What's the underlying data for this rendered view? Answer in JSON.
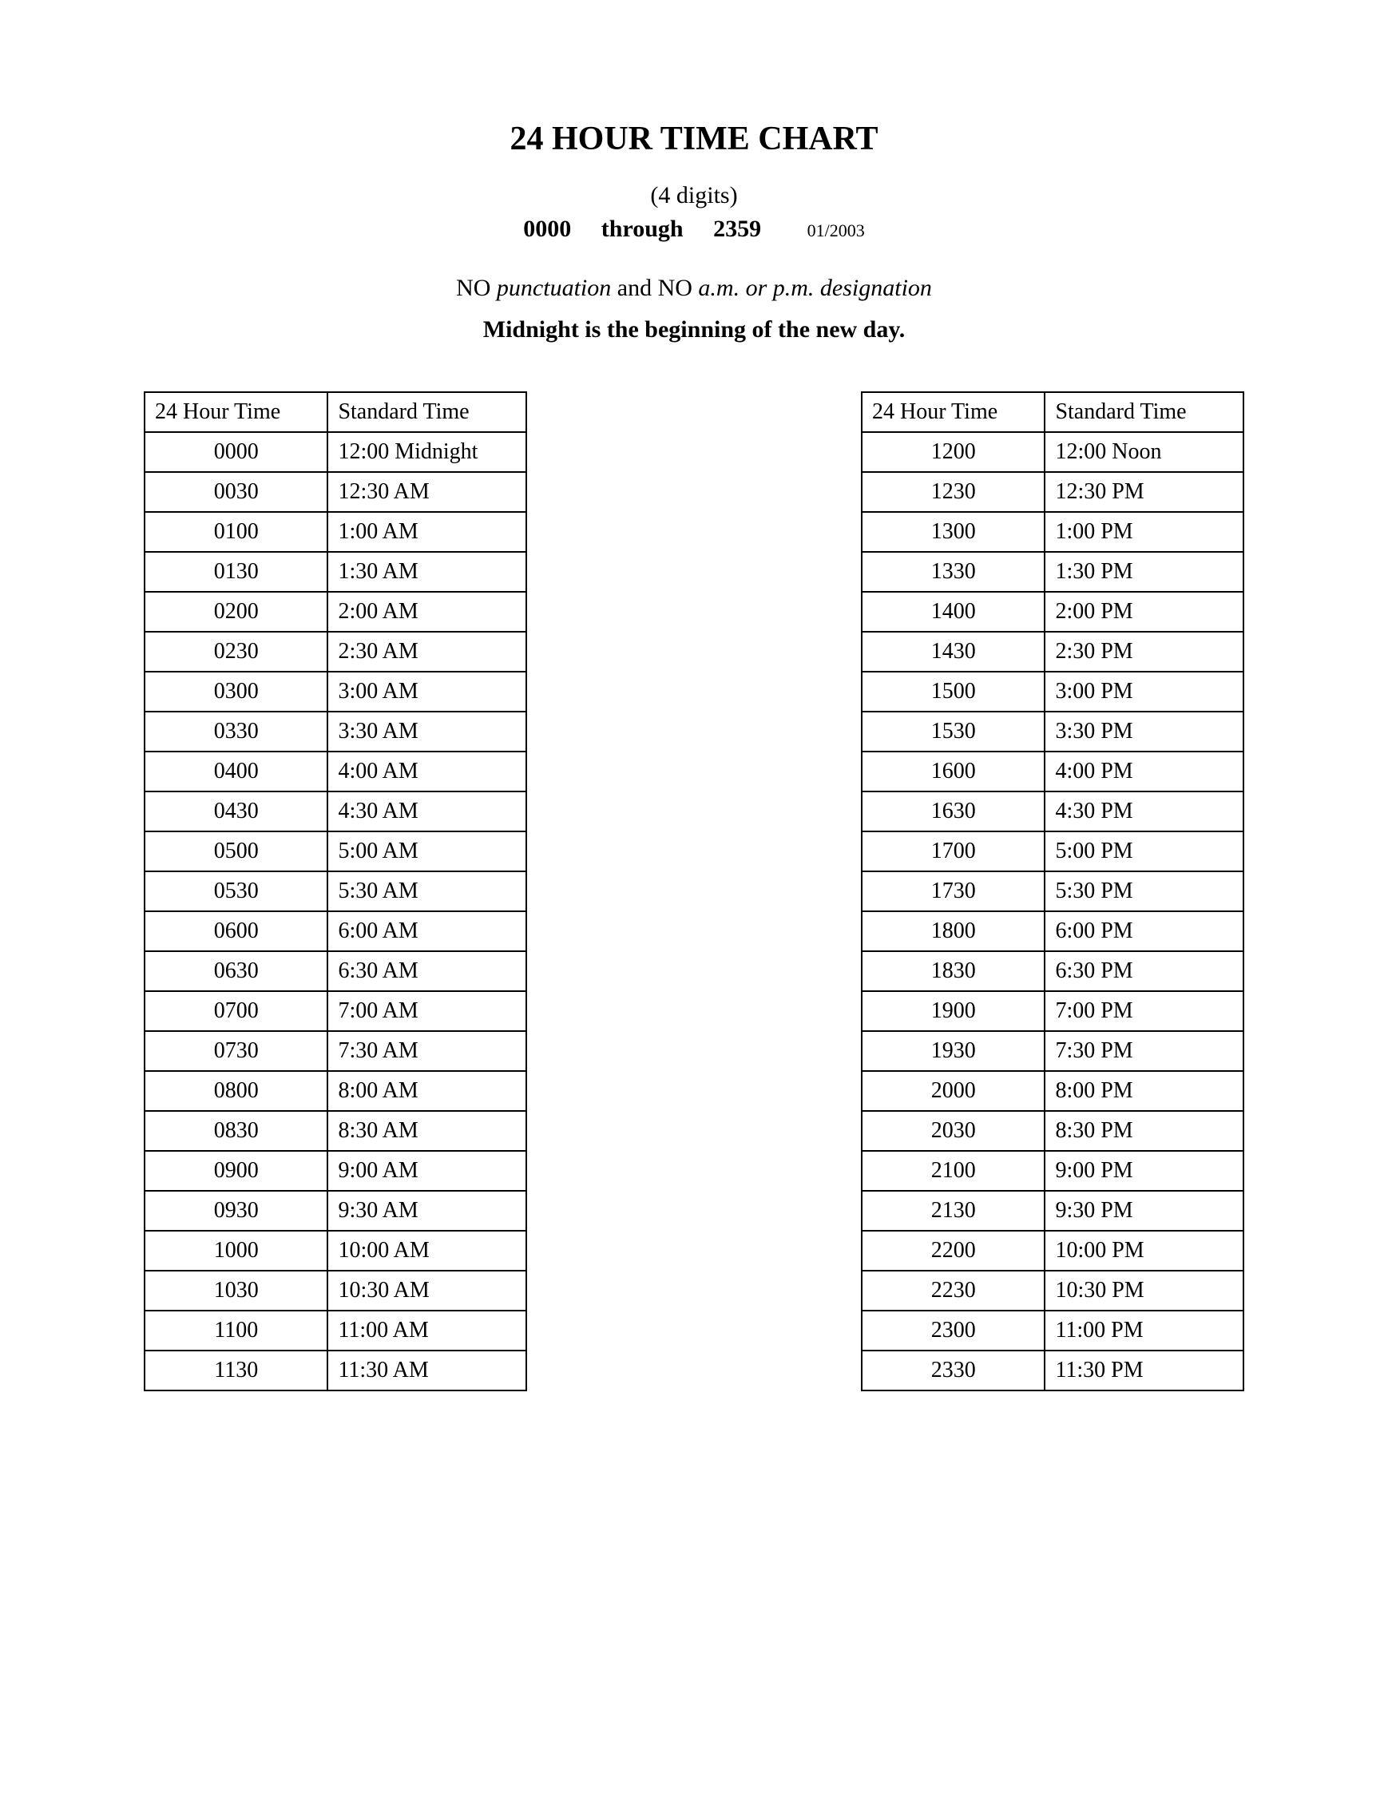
{
  "title": "24 HOUR TIME CHART",
  "subtitle": "(4 digits)",
  "range": {
    "from": "0000",
    "word": "through",
    "to": "2359",
    "date": "01/2003"
  },
  "rule1": {
    "p1": "NO ",
    "i1": "punctuation",
    "p2": " and NO ",
    "i2": "a.m. or p.m. designation"
  },
  "rule2": "Midnight is the beginning of the new day.",
  "headers": {
    "col24": "24 Hour Time",
    "colStd": "Standard Time"
  },
  "leftRows": [
    {
      "h24": "0000",
      "std": "12:00 Midnight"
    },
    {
      "h24": "0030",
      "std": "12:30 AM"
    },
    {
      "h24": "0100",
      "std": "1:00 AM"
    },
    {
      "h24": "0130",
      "std": "1:30 AM"
    },
    {
      "h24": "0200",
      "std": "2:00 AM"
    },
    {
      "h24": "0230",
      "std": "2:30 AM"
    },
    {
      "h24": "0300",
      "std": "3:00 AM"
    },
    {
      "h24": "0330",
      "std": "3:30  AM"
    },
    {
      "h24": "0400",
      "std": "4:00 AM"
    },
    {
      "h24": "0430",
      "std": "4:30 AM"
    },
    {
      "h24": "0500",
      "std": "5:00 AM"
    },
    {
      "h24": "0530",
      "std": "5:30 AM"
    },
    {
      "h24": "0600",
      "std": "6:00 AM"
    },
    {
      "h24": "0630",
      "std": "6:30 AM"
    },
    {
      "h24": "0700",
      "std": "7:00 AM"
    },
    {
      "h24": "0730",
      "std": "7:30 AM"
    },
    {
      "h24": "0800",
      "std": "8:00 AM"
    },
    {
      "h24": "0830",
      "std": "8:30 AM"
    },
    {
      "h24": "0900",
      "std": "9:00 AM"
    },
    {
      "h24": "0930",
      "std": "9:30 AM"
    },
    {
      "h24": "1000",
      "std": "10:00 AM"
    },
    {
      "h24": "1030",
      "std": "10:30 AM"
    },
    {
      "h24": "1100",
      "std": "11:00 AM"
    },
    {
      "h24": "1130",
      "std": "11:30 AM"
    }
  ],
  "rightRows": [
    {
      "h24": "1200",
      "std": "12:00 Noon"
    },
    {
      "h24": "1230",
      "std": "12:30 PM"
    },
    {
      "h24": "1300",
      "std": "1:00 PM"
    },
    {
      "h24": "1330",
      "std": "1:30 PM"
    },
    {
      "h24": "1400",
      "std": "2:00 PM"
    },
    {
      "h24": "1430",
      "std": "2:30 PM"
    },
    {
      "h24": "1500",
      "std": "3:00 PM"
    },
    {
      "h24": "1530",
      "std": "3:30 PM"
    },
    {
      "h24": "1600",
      "std": "4:00 PM"
    },
    {
      "h24": "1630",
      "std": "4:30 PM"
    },
    {
      "h24": "1700",
      "std": "5:00 PM"
    },
    {
      "h24": "1730",
      "std": "5:30 PM"
    },
    {
      "h24": "1800",
      "std": "6:00 PM"
    },
    {
      "h24": "1830",
      "std": "6:30 PM"
    },
    {
      "h24": "1900",
      "std": "7:00 PM"
    },
    {
      "h24": "1930",
      "std": "7:30 PM"
    },
    {
      "h24": "2000",
      "std": "8:00 PM"
    },
    {
      "h24": "2030",
      "std": "8:30 PM"
    },
    {
      "h24": "2100",
      "std": "9:00 PM"
    },
    {
      "h24": "2130",
      "std": "9:30 PM"
    },
    {
      "h24": "2200",
      "std": "10:00 PM"
    },
    {
      "h24": "2230",
      "std": "10:30 PM"
    },
    {
      "h24": "2300",
      "std": "11:00 PM"
    },
    {
      "h24": "2330",
      "std": "11:30 PM"
    }
  ]
}
